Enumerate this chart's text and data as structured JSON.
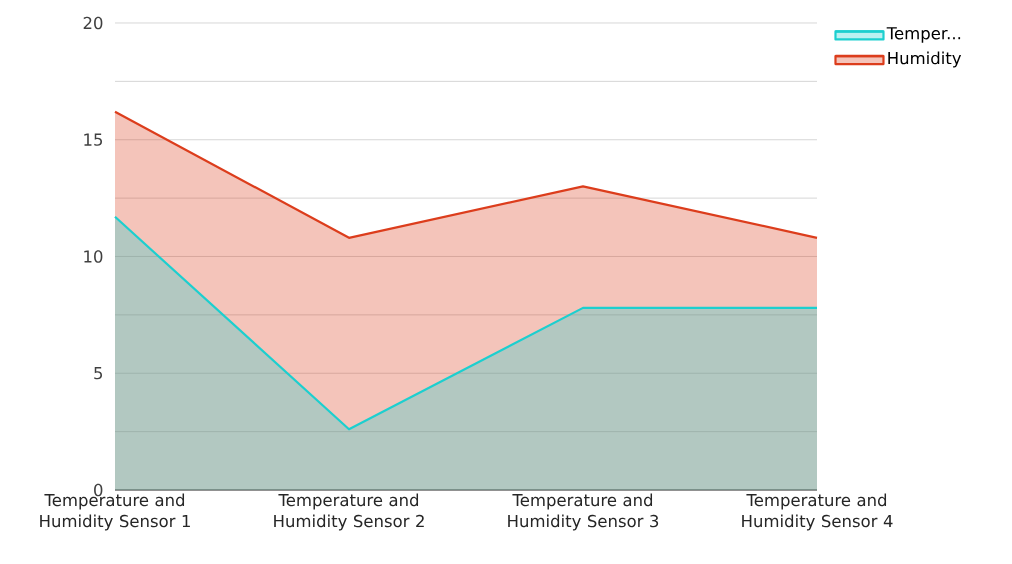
{
  "chart_data": {
    "type": "area",
    "categories": [
      "Temperature and Humidity Sensor 1",
      "Temperature and Humidity Sensor 2",
      "Temperature and Humidity Sensor 3",
      "Temperature and Humidity Sensor 4"
    ],
    "series": [
      {
        "name": "Temper...",
        "color": "#1ccfcf",
        "values": [
          11.7,
          2.6,
          7.8,
          7.8
        ]
      },
      {
        "name": "Humidity",
        "color": "#dc3d1c",
        "values": [
          16.2,
          10.8,
          13.0,
          10.8
        ]
      }
    ],
    "ylim": [
      0,
      20
    ],
    "yticks": [
      0,
      {
        "value": 2.5,
        "label": null
      },
      5,
      {
        "value": 7.5,
        "label": null
      },
      10,
      {
        "value": 12.5,
        "label": null
      },
      15,
      {
        "value": 17.5,
        "label": null
      },
      20
    ],
    "grid": "y",
    "legend": "top right"
  }
}
